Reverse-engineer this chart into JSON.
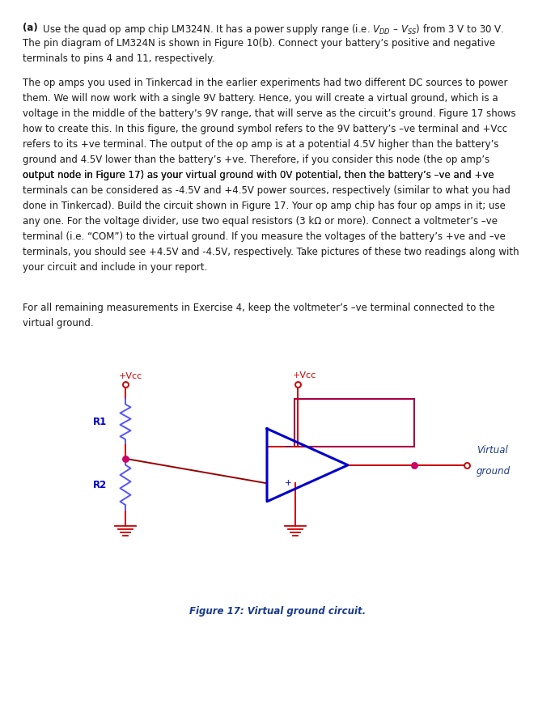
{
  "background_color": "#ffffff",
  "page_width": 6.86,
  "page_height": 8.75,
  "text_color": "#1a1a1a",
  "red": "#cc0000",
  "blue_amp": "#0000cc",
  "blue_wire": "#5555ff",
  "magenta": "#cc0066",
  "dark_red_box": "#aa0044",
  "vg_text_color": "#1a3a8a",
  "para1_line1_bold": "(a)",
  "para1_line1_rest": " Use the quad op amp chip LM324N. It has a power supply range (i.e. $V_{DD}$ – $V_{SS}$) from 3 V to 30 V.",
  "para1_line2": "The pin diagram of LM324N is shown in Figure 10(b). Connect your battery’s positive and negative",
  "para1_line3": "terminals to pins 4 and 11, respectively.",
  "para2_lines": [
    "The op amps you used in Tinkercad in the earlier experiments had two different DC sources to power",
    "them. We will now work with a single 9V battery. Hence, you will create a virtual ground, which is a",
    "voltage in the middle of the battery’s 9V range, that will serve as the circuit’s ground. Figure 17 shows",
    "how to create this. In this figure, the ground symbol refers to the 9V battery’s –ve terminal and +Vcc",
    "refers to its +ve terminal. The output of the op amp is at a potential 4.5V higher than the battery’s",
    "ground and 4.5V lower than the battery’s +ve. Therefore, if you consider this node (the op amp’s",
    "output node in Figure 17) as your |virtual ground| with 0V potential, then the battery’s –ve and +ve",
    "terminals can be considered as -4.5V and +4.5V power sources, respectively (similar to what you had",
    "done in Tinkercad). Build the circuit shown in Figure 17. Your op amp chip has four op amps in it; use",
    "any one. For the voltage divider, use two equal resistors (3 kΩ or more). Connect a voltmeter’s –ve",
    "terminal (i.e. “COM”) to the virtual ground. If you measure the voltages of the battery’s +ve and –ve",
    "terminals, you should see +4.5V and -4.5V, respectively. Take pictures of these two readings along with",
    "your circuit and include in your report."
  ],
  "para3_lines": [
    "For all remaining measurements in Exercise 4, keep the voltmeter’s –ve terminal connected to the",
    "virtual ground."
  ],
  "figure_caption": "Figure 17: Virtual ground circuit."
}
